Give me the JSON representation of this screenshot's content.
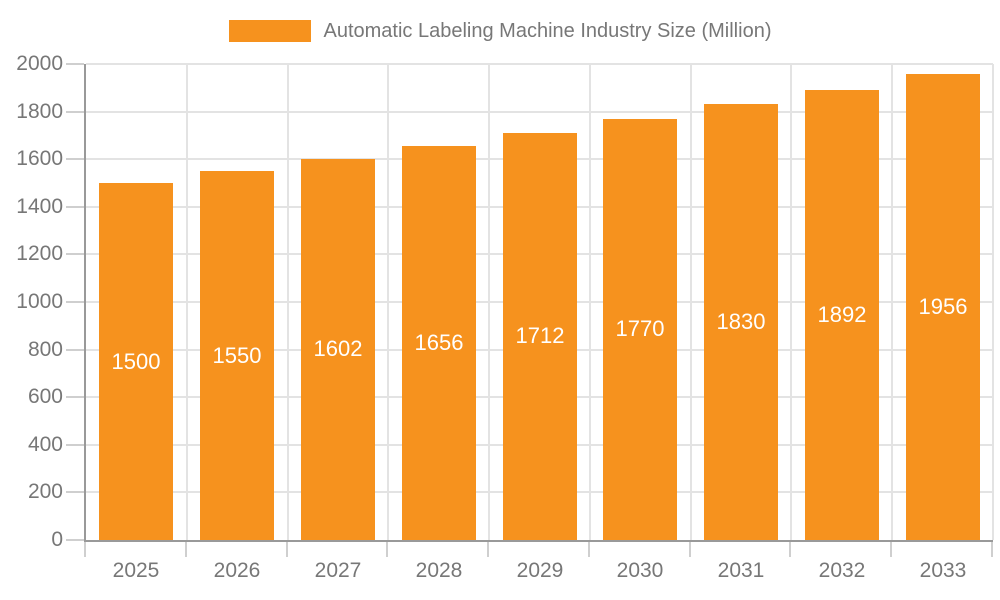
{
  "chart_data": {
    "type": "bar",
    "title": "",
    "legend_label": "Automatic Labeling Machine Industry Size (Million)",
    "categories": [
      "2025",
      "2026",
      "2027",
      "2028",
      "2029",
      "2030",
      "2031",
      "2032",
      "2033"
    ],
    "values": [
      1500,
      1550,
      1602,
      1656,
      1712,
      1770,
      1830,
      1892,
      1956
    ],
    "xlabel": "",
    "ylabel": "",
    "ylim": [
      0,
      2000
    ],
    "ytick_step": 200,
    "y_tick_labels": [
      "0",
      "200",
      "400",
      "600",
      "800",
      "1000",
      "1200",
      "1400",
      "1600",
      "1800",
      "2000"
    ],
    "grid": true,
    "legend_position": "top-center",
    "bar_labels_inside": true,
    "colors": {
      "bar": "#F6921E",
      "bar_label": "#FFFFFF",
      "axis_text": "#777777",
      "axis_line": "#999999",
      "tick_line": "#CFCFCF",
      "gridline": "#E3E3E3",
      "background": "#FFFFFF"
    }
  }
}
